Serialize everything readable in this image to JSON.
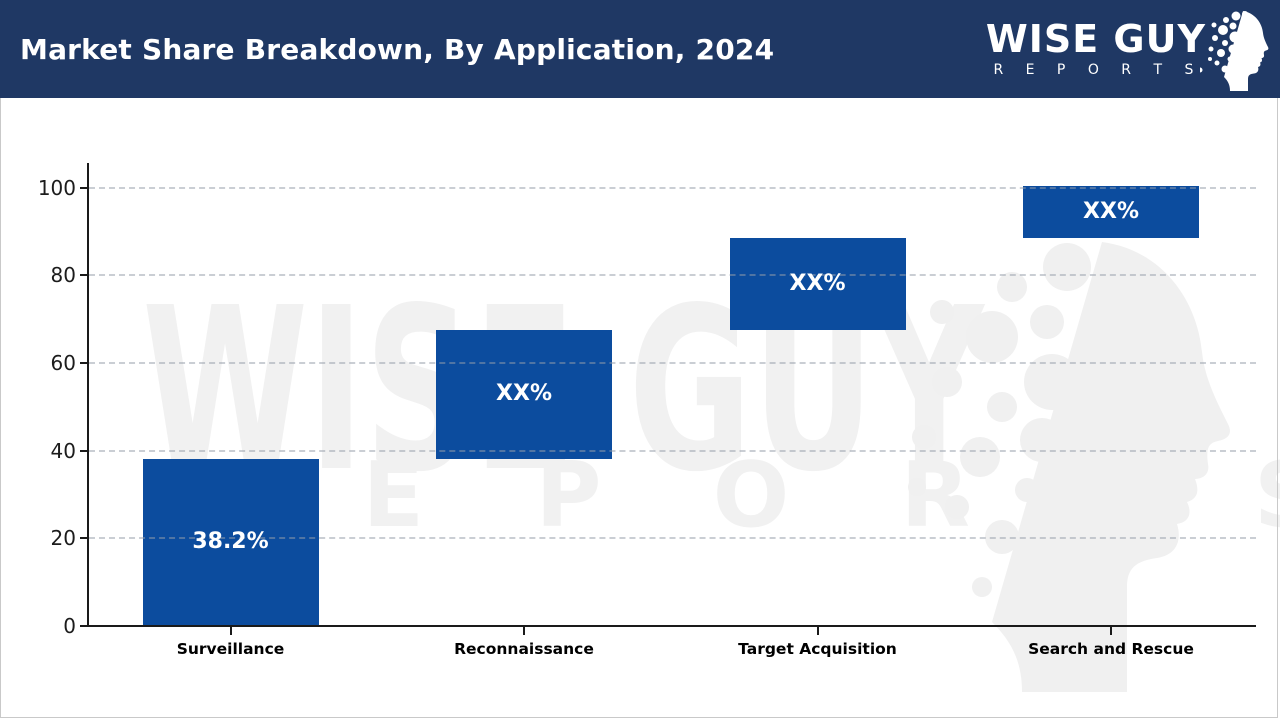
{
  "header": {
    "title": "Market Share Breakdown, By Application, 2024",
    "logo": {
      "name": "WISE GUY",
      "subname": "R E P O R T S"
    }
  },
  "watermark": {
    "line1": "WISE GUY",
    "line2": "R E P O R T S"
  },
  "chart_data": {
    "type": "bar",
    "subtype": "waterfall",
    "title": "Market Share Breakdown, By Application, 2024",
    "categories": [
      "Surveillance",
      "Reconnaissance",
      "Target Acquisition",
      "Search and Rescue"
    ],
    "bars": [
      {
        "category": "Surveillance",
        "label": "38.2%",
        "start": 0,
        "end": 38.2
      },
      {
        "category": "Reconnaissance",
        "label": "XX%",
        "start": 38.2,
        "end": 67.6
      },
      {
        "category": "Target Acquisition",
        "label": "XX%",
        "start": 67.6,
        "end": 88.5
      },
      {
        "category": "Search and Rescue",
        "label": "XX%",
        "start": 88.5,
        "end": 100.5
      }
    ],
    "ylim": [
      0,
      100
    ],
    "yticks": [
      0,
      20,
      40,
      60,
      80,
      100
    ],
    "xlabel": "",
    "ylabel": "",
    "grid": "horizontal-dashed-over-bars",
    "legend_position": "none",
    "colors": {
      "bar": "#0c4c9e",
      "header": "#1f3864",
      "grid": "#c9ced6",
      "axis": "#1a1a1a",
      "watermark": "#f1f1f1",
      "value_label": "#ffffff"
    }
  }
}
